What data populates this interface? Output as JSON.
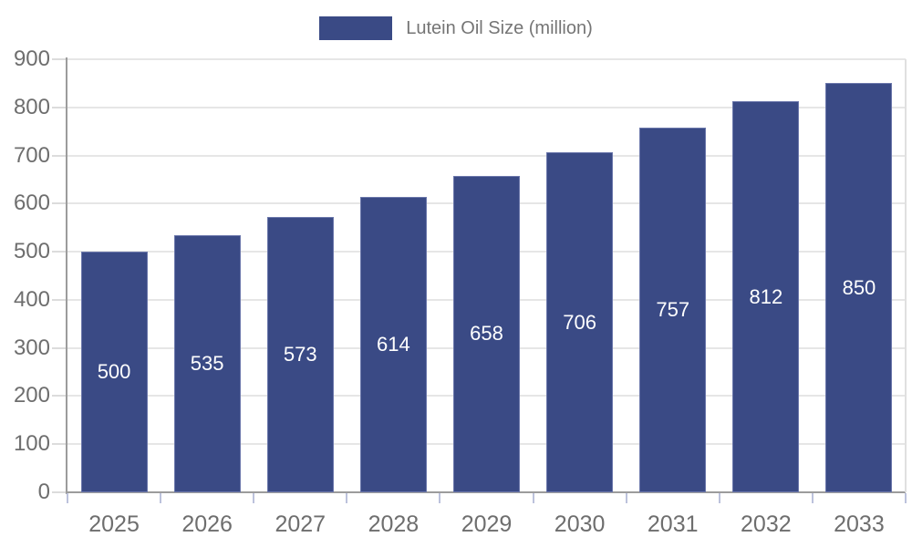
{
  "chart_data": {
    "type": "bar",
    "title": "",
    "series_name": "Lutein Oil Size (million)",
    "categories": [
      "2025",
      "2026",
      "2027",
      "2028",
      "2029",
      "2030",
      "2031",
      "2032",
      "2033"
    ],
    "values": [
      500,
      535,
      573,
      614,
      658,
      706,
      757,
      812,
      850
    ],
    "xlabel": "",
    "ylabel": "",
    "ylim": [
      0,
      900
    ],
    "yticks": [
      0,
      100,
      200,
      300,
      400,
      500,
      600,
      700,
      800,
      900
    ],
    "grid": true,
    "legend_position": "top-center",
    "value_label_position": "inside-center",
    "colors": {
      "background": "#ffffff",
      "bar": "#3a4a85",
      "bar_border": "#6b77ab",
      "value_label": "#ffffff",
      "axis_text": "#6e6e6e",
      "legend_text": "#757575",
      "gridline": "#e6e6e6",
      "axis_line": "#9c9c9c",
      "plot_border": "#e0e0e0",
      "x_tick": "#bcc2dc",
      "y_tick": "#dcdcdc"
    }
  }
}
